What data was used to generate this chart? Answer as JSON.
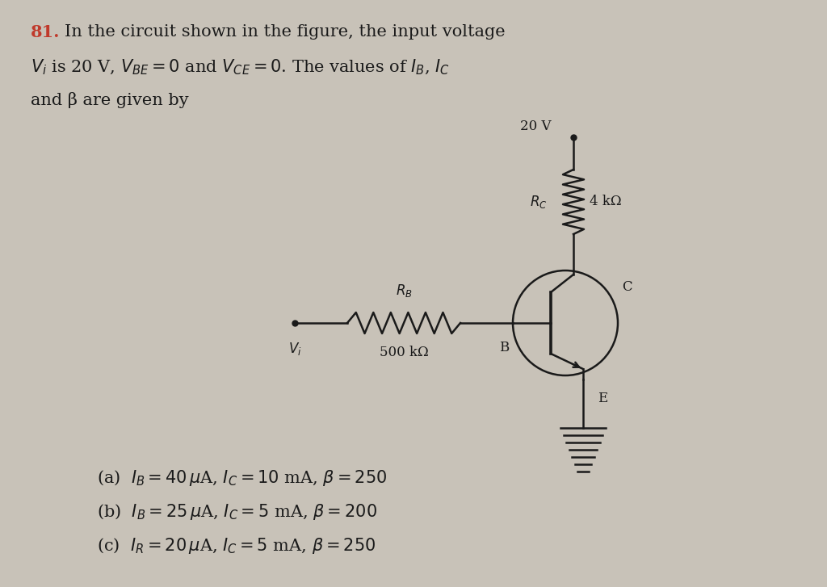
{
  "background_color": "#c8c2b8",
  "question_number": "81.",
  "question_text_line1": "In the circuit shown in the figure, the input voltage",
  "question_text_line2": "$V_i$ is 20 V, $V_{BE} = 0$ and $V_{CE} = 0$. The values of $I_B$, $I_C$",
  "question_text_line3": "and β are given by",
  "answer_a": "(a)  $I_B = 40\\,\\mu$A, $I_C = 10$ mA, $\\beta = 250$",
  "answer_b": "(b)  $I_B = 25\\,\\mu$A, $I_C = 5$ mA, $\\beta = 200$",
  "answer_c": "(c)  $I_R = 20\\,\\mu$A, $I_C = 5$ mA, $\\beta = 250$",
  "label_20V": "20 V",
  "label_RC": "$R_C$",
  "label_4kohm": "4 kΩ",
  "label_RB": "$R_B$",
  "label_500kohm": "500 kΩ",
  "label_B": "B",
  "label_C": "C",
  "label_E": "E",
  "label_Vi": "$V_i$",
  "text_color": "#1a1a1a",
  "circuit_color": "#1a1a1a",
  "number_color": "#c0392b"
}
